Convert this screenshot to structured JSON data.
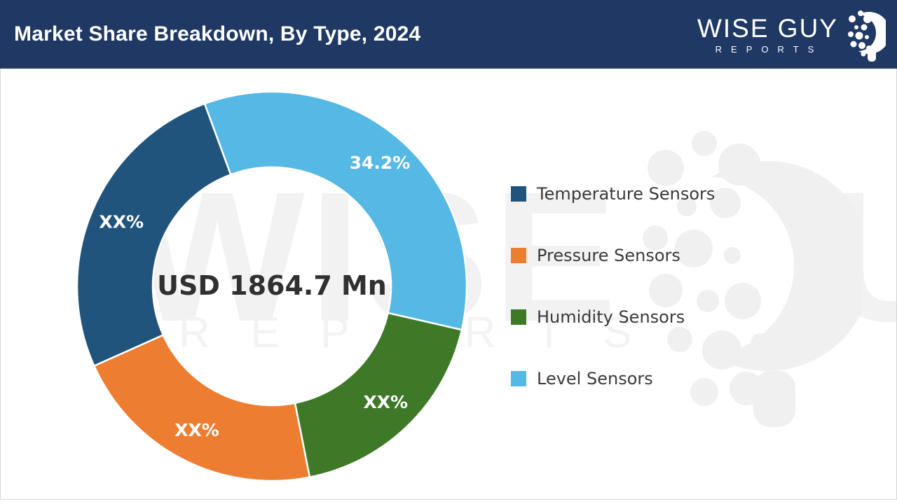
{
  "header": {
    "title": "Market Share Breakdown, By Type, 2024",
    "bg_color": "#1f3864",
    "logo": {
      "line1": "WISE GUY",
      "line2": "REPORTS",
      "icon": "dotted-head-profile-icon"
    }
  },
  "watermark": {
    "line1": "WISE GUY",
    "line2": "REPORTS"
  },
  "chart_data": {
    "type": "pie",
    "donut": true,
    "title": "Market Share Breakdown, By Type, 2024",
    "center_label": "USD 1864.7 Mn",
    "legend_position": "right",
    "start_angle_cw_from_top_deg": 339.8,
    "direction": "counterclockwise",
    "series": [
      {
        "name": "Temperature Sensors",
        "value": 26.1,
        "display_label": "XX%",
        "color": "#20547c"
      },
      {
        "name": "Pressure Sensors",
        "value": 21.4,
        "display_label": "XX%",
        "color": "#ed7d31"
      },
      {
        "name": "Humidity Sensors",
        "value": 18.3,
        "display_label": "XX%",
        "color": "#3e7928"
      },
      {
        "name": "Level Sensors",
        "value": 34.2,
        "display_label": "34.2%",
        "color": "#56b8e4"
      }
    ],
    "note_only_labeled_value": "34.2%"
  }
}
